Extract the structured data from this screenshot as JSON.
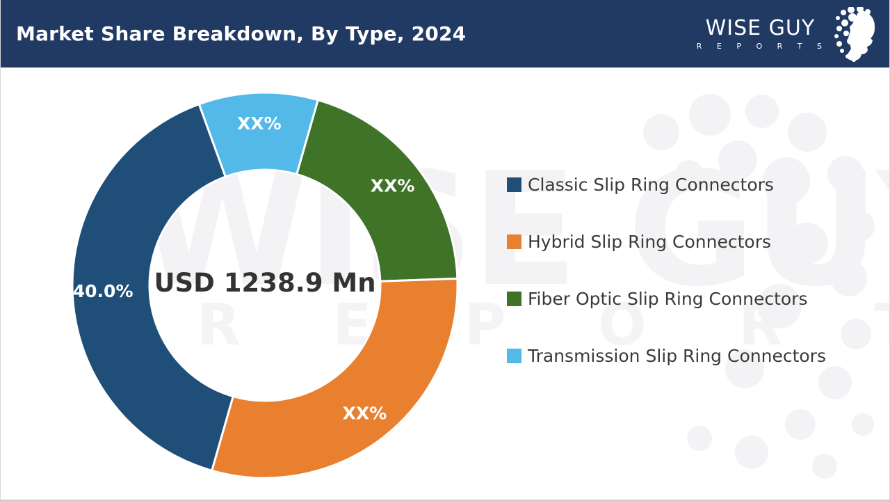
{
  "header": {
    "title": "Market Share Breakdown, By Type, 2024",
    "brand": {
      "name_top": "WISE GUY",
      "name_bottom": "R E P O R T S"
    }
  },
  "colors": {
    "header_bg": "#203A64",
    "classic_blue": "#1F4E79",
    "hybrid_orange": "#E8802F",
    "fiber_green": "#3F7328",
    "transmission_lightblue": "#52B9E8"
  },
  "watermark": {
    "line1": "WISE GUY",
    "line2": "R E P O R T S"
  },
  "chart_data": {
    "type": "pie",
    "subtype": "donut",
    "title": "Market Share Breakdown, By Type, 2024",
    "center_label": "USD 1238.9 Mn",
    "start_angle_deg": -20,
    "inner_radius_ratio": 0.6,
    "legend_position": "right",
    "segments": [
      {
        "label": "Classic Slip Ring Connectors",
        "value_pct": 40,
        "display": "40.0%",
        "color": "#1F4E79"
      },
      {
        "label": "Hybrid Slip Ring Connectors",
        "value_pct": 30,
        "display": "XX%",
        "color": "#E8802F"
      },
      {
        "label": "Fiber Optic Slip Ring Connectors",
        "value_pct": 20,
        "display": "XX%",
        "color": "#3F7328"
      },
      {
        "label": "Transmission Slip Ring Connectors",
        "value_pct": 10,
        "display": "XX%",
        "color": "#52B9E8"
      }
    ]
  }
}
